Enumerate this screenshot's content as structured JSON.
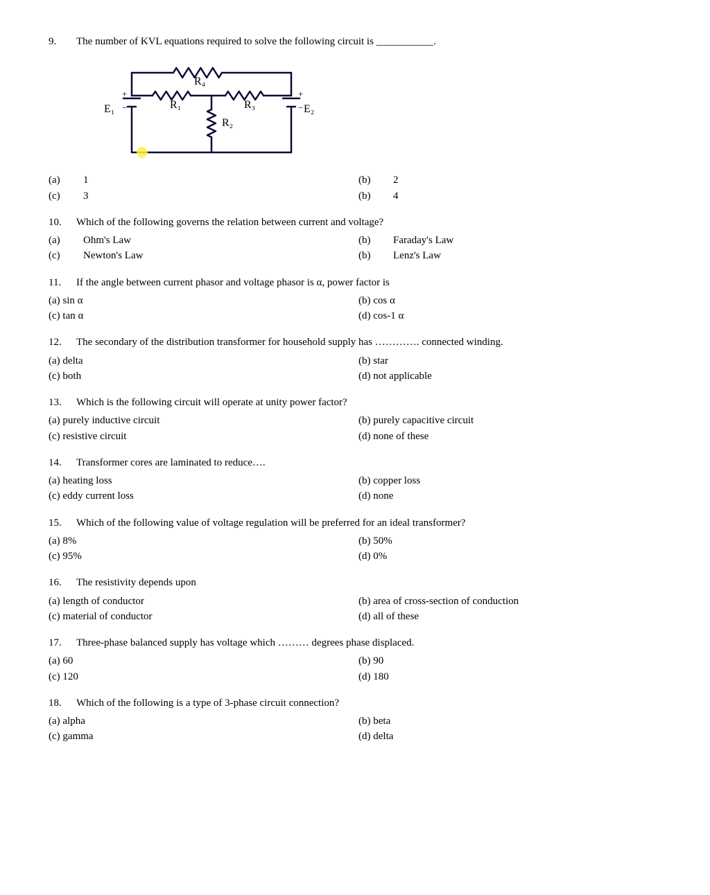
{
  "questions": [
    {
      "num": "9.",
      "text": "The number of KVL equations required to solve the following circuit is ___________.",
      "has_circuit": true,
      "opt_indent": true,
      "options": [
        {
          "label": "(a)",
          "text": "1"
        },
        {
          "label": "(b)",
          "text": "2"
        },
        {
          "label": "(c)",
          "text": "3"
        },
        {
          "label": "(b)",
          "text": "4"
        }
      ]
    },
    {
      "num": "10.",
      "text": "Which of the following governs the relation between current and voltage?",
      "opt_indent": true,
      "options": [
        {
          "label": "(a)",
          "text": "Ohm's Law"
        },
        {
          "label": "(b)",
          "text": "Faraday's Law"
        },
        {
          "label": "(c)",
          "text": "Newton's Law"
        },
        {
          "label": "(b)",
          "text": "Lenz's Law"
        }
      ]
    },
    {
      "num": "11.",
      "text": "If the angle between current phasor and voltage phasor is α, power factor is",
      "opt_indent": false,
      "options": [
        {
          "label": "(a)",
          "text": "sin α"
        },
        {
          "label": "(b)",
          "text": "cos α"
        },
        {
          "label": "(c)",
          "text": "tan α"
        },
        {
          "label": "(d)",
          "text": "cos-1 α"
        }
      ]
    },
    {
      "num": "12.",
      "text": "The secondary of the distribution transformer for household supply has …………. connected winding.",
      "opt_indent": false,
      "justify": true,
      "options": [
        {
          "label": "(a)",
          "text": "delta"
        },
        {
          "label": "(b)",
          "text": "star"
        },
        {
          "label": "(c)",
          "text": "both"
        },
        {
          "label": "(d)",
          "text": "not applicable"
        }
      ]
    },
    {
      "num": "13.",
      "text": "Which is the following circuit will operate at unity power factor?",
      "opt_indent": false,
      "options": [
        {
          "label": "(a)",
          "text": "purely inductive circuit"
        },
        {
          "label": "(b)",
          "text": "purely capacitive circuit"
        },
        {
          "label": "(c)",
          "text": "resistive circuit"
        },
        {
          "label": "(d)",
          "text": "none of these"
        }
      ]
    },
    {
      "num": "14.",
      "text": "Transformer cores are laminated to reduce….",
      "opt_indent": false,
      "options": [
        {
          "label": "(a)",
          "text": "heating loss"
        },
        {
          "label": "(b)",
          "text": "copper loss"
        },
        {
          "label": "(c)",
          "text": "eddy current loss"
        },
        {
          "label": "(d)",
          "text": "none"
        }
      ]
    },
    {
      "num": "15.",
      "text": "Which of the following value of voltage regulation will be preferred for an ideal transformer?",
      "opt_indent": false,
      "options": [
        {
          "label": "(a)",
          "text": "8%"
        },
        {
          "label": "(b)",
          "text": "50%"
        },
        {
          "label": "(c)",
          "text": "95%"
        },
        {
          "label": "(d)",
          "text": "0%"
        }
      ]
    },
    {
      "num": "16.",
      "text": "The resistivity depends upon",
      "opt_indent": false,
      "options": [
        {
          "label": "(a)",
          "text": "length of conductor"
        },
        {
          "label": "(b)",
          "text": "area of cross-section of conduction"
        },
        {
          "label": "(c)",
          "text": "material of conductor"
        },
        {
          "label": "(d)",
          "text": "all of these"
        }
      ]
    },
    {
      "num": "17.",
      "text": "Three-phase balanced supply has voltage which ……… degrees phase displaced.",
      "opt_indent": false,
      "options": [
        {
          "label": "(a)",
          "text": "60"
        },
        {
          "label": "(b)",
          "text": "90"
        },
        {
          "label": "(c)",
          "text": "120"
        },
        {
          "label": "(d)",
          "text": "180"
        }
      ]
    },
    {
      "num": "18.",
      "text": "Which of the following is a type of 3-phase circuit connection?",
      "opt_indent": false,
      "options": [
        {
          "label": "(a)",
          "text": "alpha"
        },
        {
          "label": "(b)",
          "text": "beta"
        },
        {
          "label": "(c)",
          "text": "gamma"
        },
        {
          "label": "(d)",
          "text": "delta"
        }
      ]
    }
  ],
  "circuit": {
    "stroke": "#0a0a3a",
    "stroke_width": 2.5,
    "highlight_color": "#fff04d",
    "labels": {
      "E1": "E₁",
      "E2": "E₂",
      "R1": "R₁",
      "R2": "R₂",
      "R3": "R₃",
      "R4": "R₄",
      "plus": "+",
      "minus": "−"
    },
    "label_font": "16px 'Comic Sans MS', cursive"
  }
}
